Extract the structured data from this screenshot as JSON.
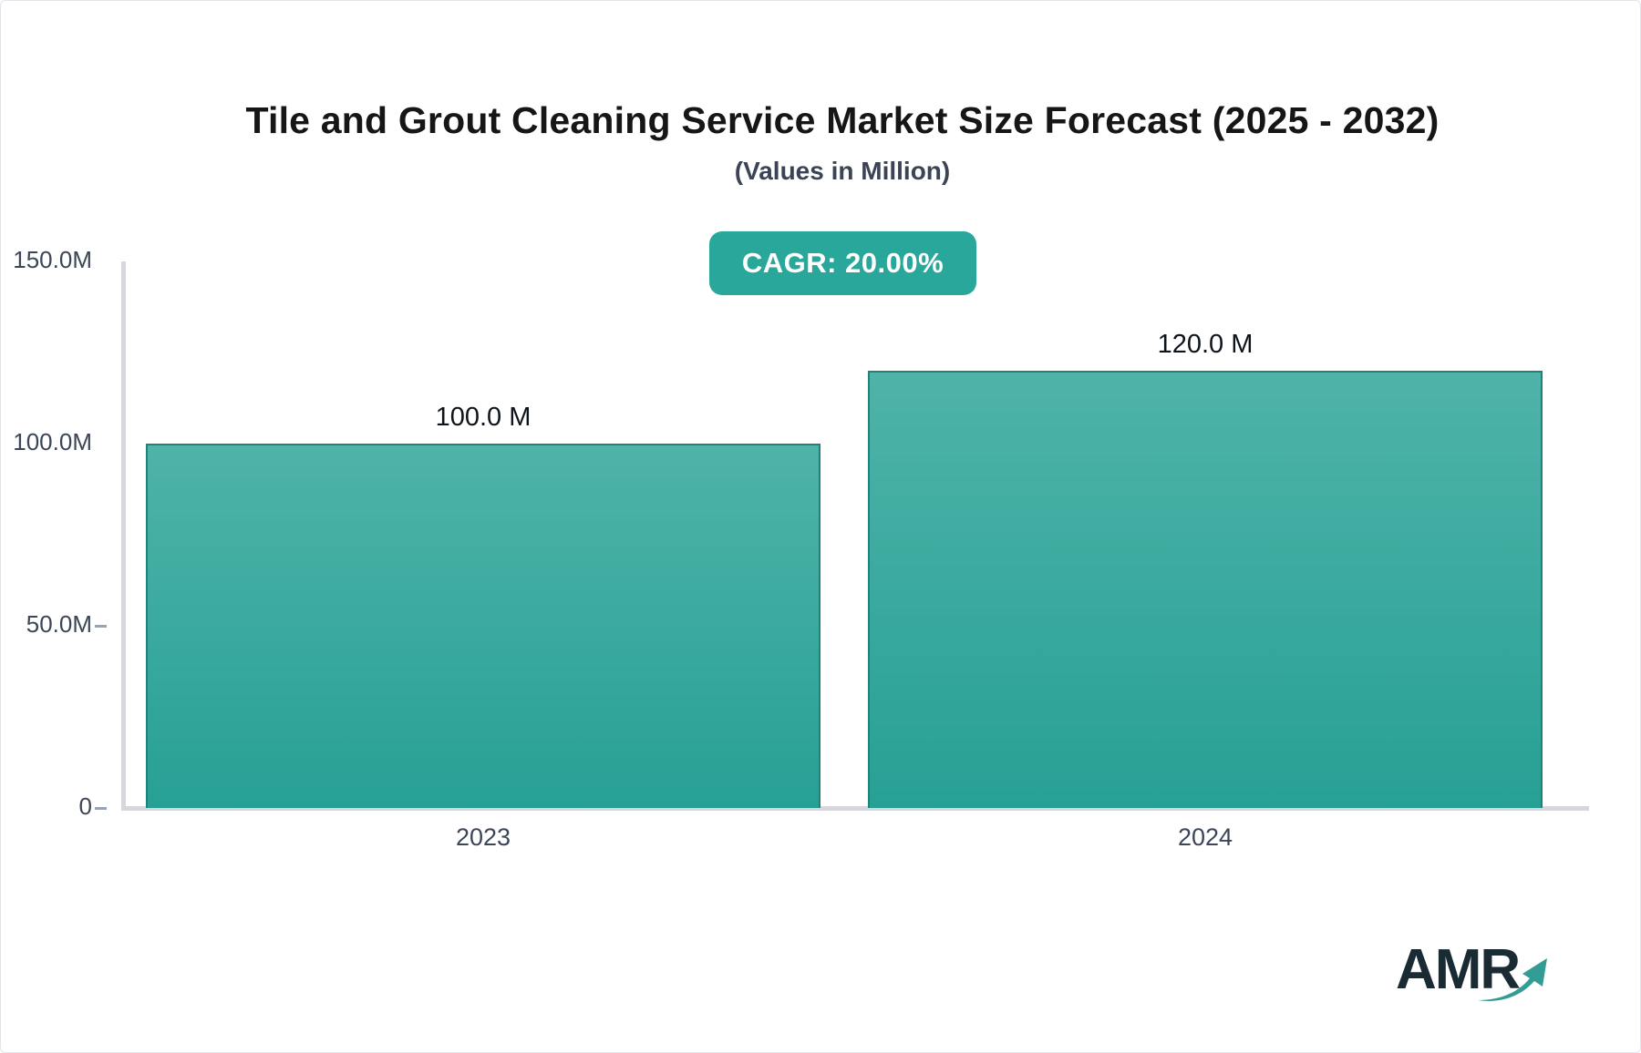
{
  "header": {
    "title": "Tile and Grout Cleaning Service Market Size Forecast (2025 - 2032)",
    "subtitle": "(Values in Million)"
  },
  "badge": {
    "label": "CAGR: 20.00%",
    "bg": "#2aa79b",
    "text_color": "#ffffff"
  },
  "chart_data": {
    "type": "bar",
    "categories": [
      "2023",
      "2024"
    ],
    "values": [
      100,
      120
    ],
    "value_labels": [
      "100.0 M",
      "120.0 M"
    ],
    "title": "Tile and Grout Cleaning Service Market Size Forecast (2025 - 2032)",
    "subtitle": "(Values in Million)",
    "xlabel": "",
    "ylabel": "",
    "unit": "Million",
    "ylim": [
      0,
      150
    ],
    "yticks": [
      {
        "label": "150.0M",
        "value": 150,
        "dash": false
      },
      {
        "label": "100.0M",
        "value": 100,
        "dash": false
      },
      {
        "label": "50.0M",
        "value": 50,
        "dash": true
      },
      {
        "label": "0",
        "value": 0,
        "dash": true
      }
    ],
    "grid": false,
    "legend": "none",
    "bar_color_top": "#4fb3a9",
    "bar_color_bottom": "#27a094",
    "bar_border_color": "#1e837b",
    "axis_color": "#d4d7de",
    "tick_mark_color": "#9aa3b2",
    "tick_text_color": "#3b4656",
    "value_label_color": "#0e141b",
    "x_label_color": "#3b4656"
  },
  "logo": {
    "text": "AMR",
    "text_color": "#1a2b33",
    "arrow_color": "#339c94"
  }
}
